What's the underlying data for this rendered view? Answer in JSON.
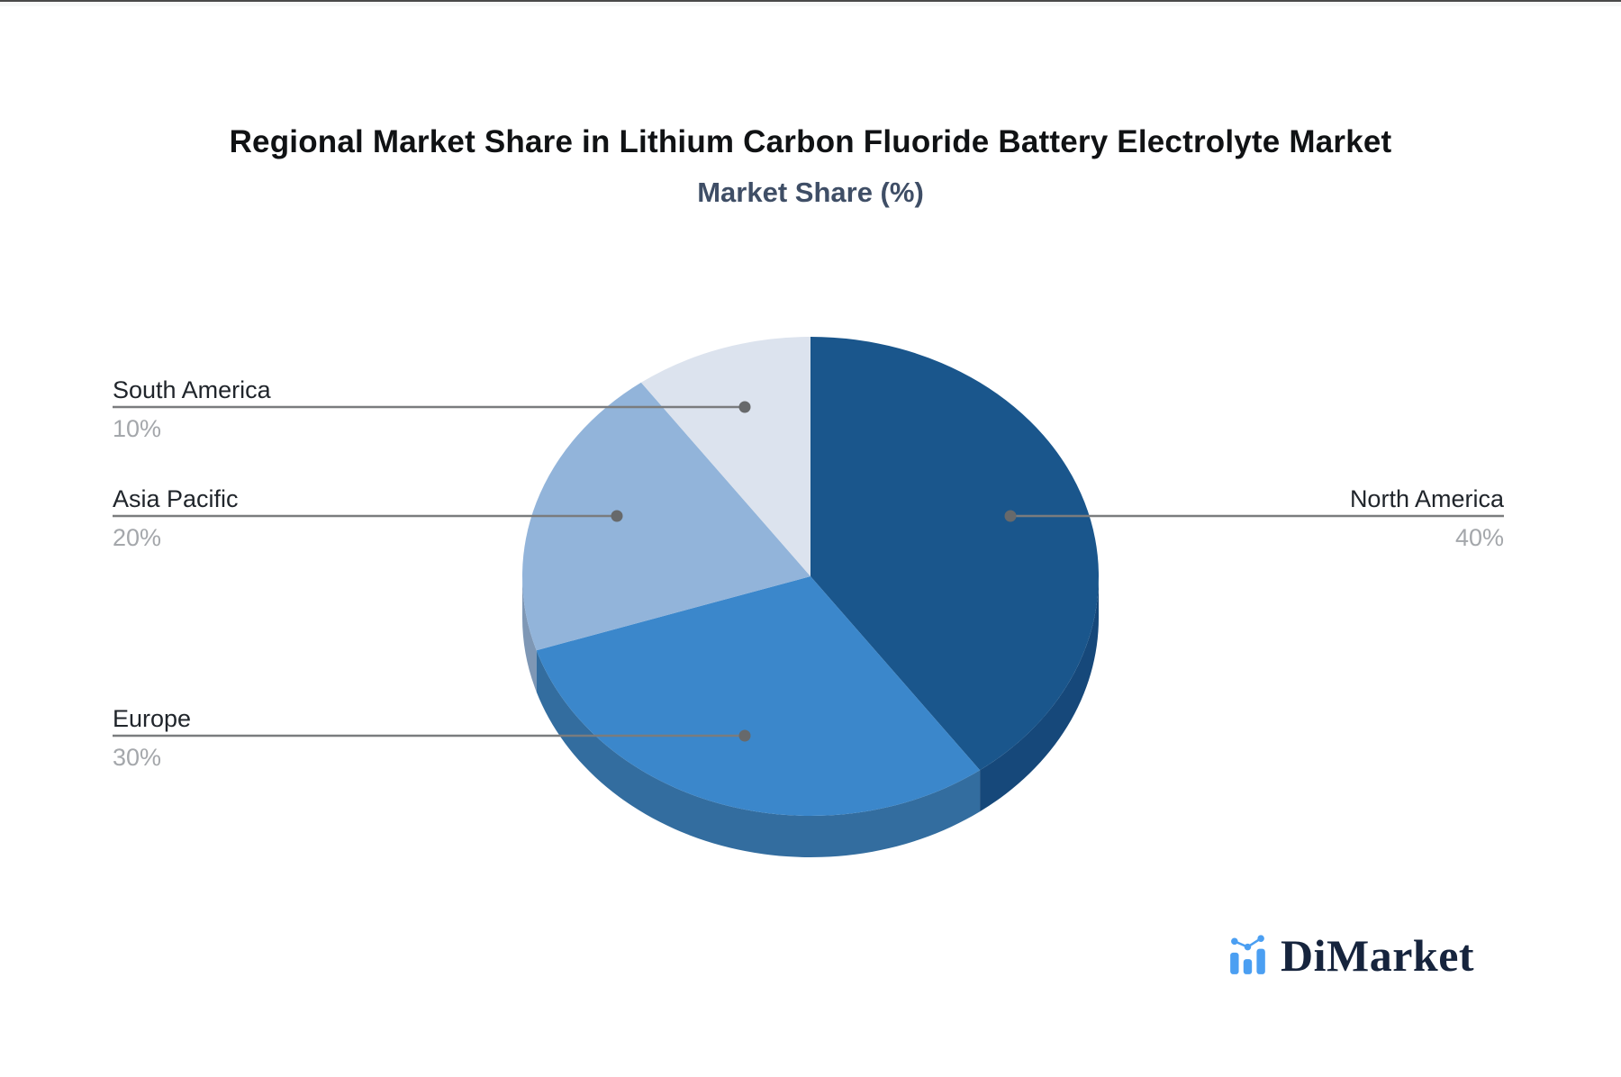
{
  "chart_data": {
    "type": "pie",
    "title": "Regional Market Share in Lithium Carbon Fluoride Battery Electrolyte Market",
    "subtitle": "Market Share (%)",
    "unit": "%",
    "effect": "3d",
    "start_angle_deg": 0,
    "direction": "clockwise",
    "legend_position": "leader-line-labels",
    "slices": [
      {
        "label": "North America",
        "value": 40,
        "display_value": "40%",
        "color": "#1a568c",
        "side_color": "#16487a"
      },
      {
        "label": "Europe",
        "value": 30,
        "display_value": "30%",
        "color": "#3b87cb",
        "side_color": "#336d9f"
      },
      {
        "label": "Asia Pacific",
        "value": 20,
        "display_value": "20%",
        "color": "#92b4da",
        "side_color": "#7e97b5"
      },
      {
        "label": "South America",
        "value": 10,
        "display_value": "10%",
        "color": "#dce3ee",
        "side_color": "#c8d3e2"
      }
    ]
  },
  "brand": {
    "name": "DiMarket",
    "icon": "bar-chart-logo-icon",
    "accent_color": "#4b9ff2",
    "text_color": "#16243d"
  }
}
